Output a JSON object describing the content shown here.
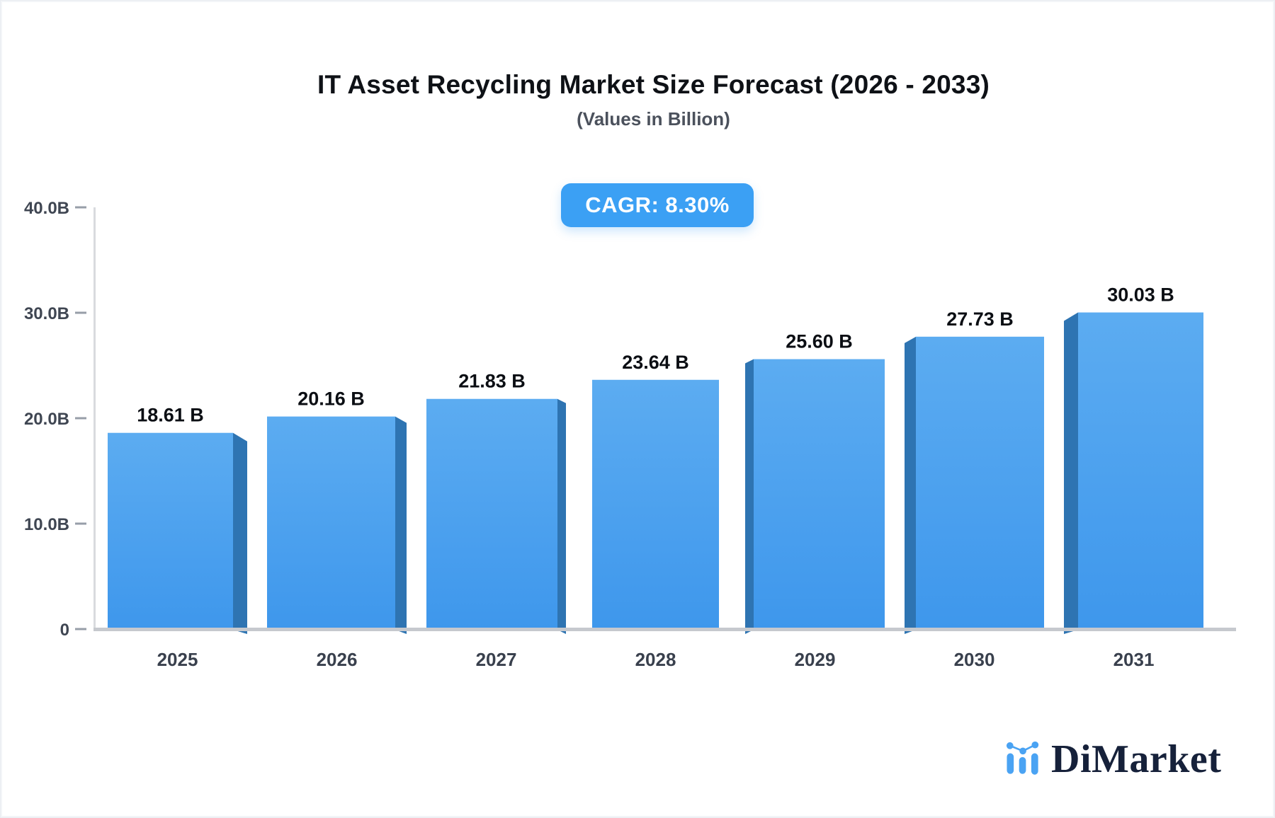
{
  "header": {
    "title": "IT Asset Recycling Market Size Forecast (2026 - 2033)",
    "subtitle": "(Values in Billion)",
    "cagr_label": "CAGR: 8.30%"
  },
  "chart_data": {
    "type": "bar",
    "title": "IT Asset Recycling Market Size Forecast (2026 - 2033)",
    "subtitle": "(Values in Billion)",
    "categories": [
      "2025",
      "2026",
      "2027",
      "2028",
      "2029",
      "2030",
      "2031"
    ],
    "values": [
      18.61,
      20.16,
      21.83,
      23.64,
      25.6,
      27.73,
      30.03
    ],
    "value_labels": [
      "18.61 B",
      "20.16 B",
      "21.83 B",
      "23.64 B",
      "25.60 B",
      "27.73 B",
      "30.03 B"
    ],
    "y_tick_labels": [
      "40.0B",
      "30.0B",
      "20.0B",
      "10.0B",
      "0"
    ],
    "ylim": [
      0,
      40
    ],
    "xlabel": "",
    "ylabel": "",
    "grid": "off",
    "legend": "none",
    "style": "3d-perspective-columns"
  },
  "branding": {
    "logo_text": "DiMarket",
    "logo_icon": "bar-chart-trend-icon"
  },
  "colors": {
    "bar_top": "#5cacf1",
    "bar_bottom": "#3e97ec",
    "bar_side": "#2e74b2",
    "badge_bg": "#3ba0f4",
    "baseline": "#c6c9ce",
    "axis_line": "#d9dbde",
    "tick": "#979ea8",
    "axis_text": "#3f4652",
    "value_text": "#0b0e13",
    "logo_navy": "#16213a",
    "logo_blue": "#4aa3f3"
  }
}
